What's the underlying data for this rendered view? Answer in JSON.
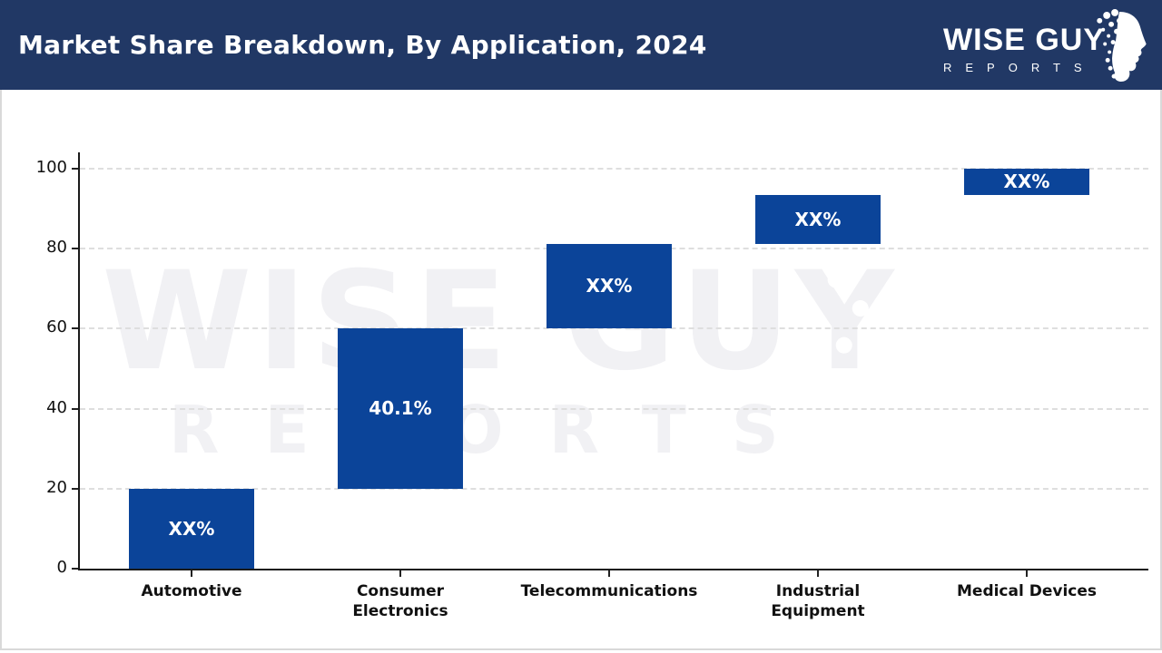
{
  "header": {
    "title": "Market Share Breakdown, By Application, 2024",
    "logo": {
      "wordmark": "WISE GUY",
      "subtitle": "REPORTS"
    }
  },
  "watermark": {
    "wordmark": "WISE GUY",
    "subtitle": "REPORTS"
  },
  "chart_data": {
    "type": "bar",
    "variant": "waterfall",
    "title": "Market Share Breakdown, By Application, 2024",
    "categories": [
      "Automotive",
      "Consumer Electronics",
      "Telecommunications",
      "Industrial Equipment",
      "Medical Devices"
    ],
    "segments": [
      {
        "category": "Automotive",
        "start": 0,
        "end": 20,
        "value": 20,
        "label": "XX%"
      },
      {
        "category": "Consumer Electronics",
        "start": 20,
        "end": 60.1,
        "value": 40.1,
        "label": "40.1%"
      },
      {
        "category": "Telecommunications",
        "start": 60.1,
        "end": 81.2,
        "value": 21.1,
        "label": "XX%"
      },
      {
        "category": "Industrial Equipment",
        "start": 81.2,
        "end": 93.5,
        "value": 12.3,
        "label": "XX%"
      },
      {
        "category": "Medical Devices",
        "start": 93.5,
        "end": 100,
        "value": 6.5,
        "label": "XX%"
      }
    ],
    "yticks": [
      0,
      20,
      40,
      60,
      80,
      100
    ],
    "ylim": [
      0,
      104
    ],
    "xlabel": "",
    "ylabel": "",
    "grid": "horizontal-dashed",
    "legend": "none"
  },
  "colors": {
    "header_bg": "#213865",
    "bar": "#0b4499",
    "bar_label": "#ffffff",
    "axis": "#1a1a1a",
    "grid": "#dedede",
    "watermark": "#f1f1f4",
    "border": "#d9d9d9",
    "tick_text": "#111111"
  }
}
